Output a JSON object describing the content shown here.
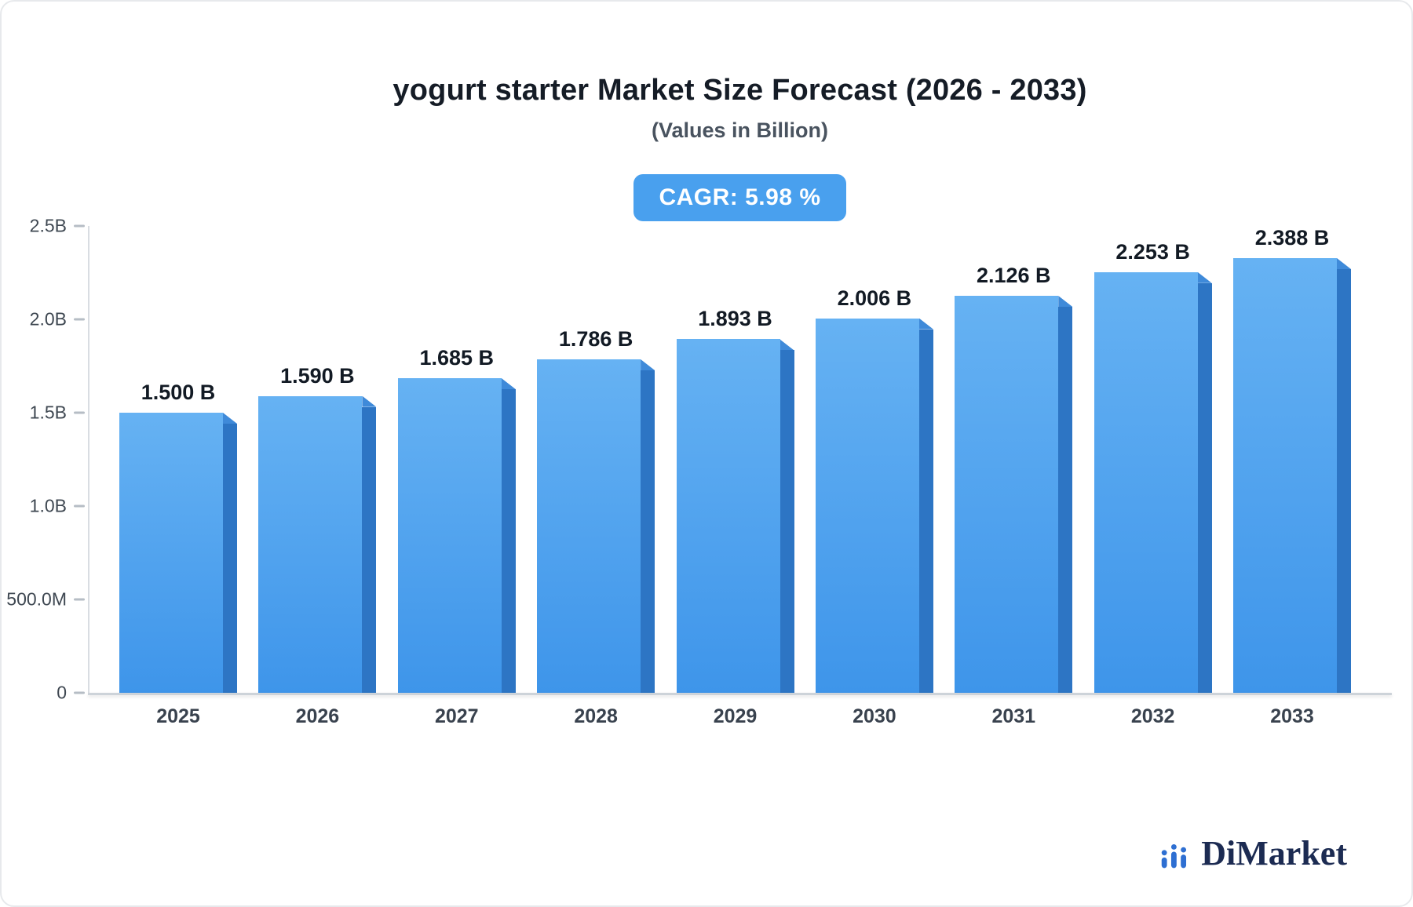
{
  "chart_data": {
    "type": "bar",
    "title": "yogurt starter Market Size Forecast (2026 - 2033)",
    "subtitle": "(Values in Billion)",
    "badge": "CAGR: 5.98 %",
    "categories": [
      "2025",
      "2026",
      "2027",
      "2028",
      "2029",
      "2030",
      "2031",
      "2032",
      "2033"
    ],
    "values": [
      1.5,
      1.59,
      1.685,
      1.786,
      1.893,
      2.006,
      2.126,
      2.253,
      2.388
    ],
    "value_labels": [
      "1.500 B",
      "1.590 B",
      "1.685 B",
      "1.786 B",
      "1.893 B",
      "2.006 B",
      "2.126 B",
      "2.253 B",
      "2.388 B"
    ],
    "xlabel": "",
    "ylabel": "",
    "ylim": [
      0,
      2.5
    ],
    "grid": "off",
    "legend": "none",
    "y_ticks": [
      {
        "label": "2.5B",
        "value": 2.5
      },
      {
        "label": "2.0B",
        "value": 2.0
      },
      {
        "label": "1.5B",
        "value": 1.5
      },
      {
        "label": "1.0B",
        "value": 1.0
      },
      {
        "label": "500.0M",
        "value": 0.5
      },
      {
        "label": "0",
        "value": 0
      }
    ],
    "colors": {
      "bar_top": "#66b2f3",
      "bar_bottom": "#3e95ea",
      "bar_side": "#2d75c4",
      "bar_bevel": "#3f8ad9",
      "badge_bg": "#49a0ee",
      "axis": "#d9dde2",
      "baseline": "#cdd3d9",
      "logo": "#2e6fd2",
      "logo_text": "#1c2b52"
    }
  },
  "logo": {
    "text": "DiMarket"
  }
}
